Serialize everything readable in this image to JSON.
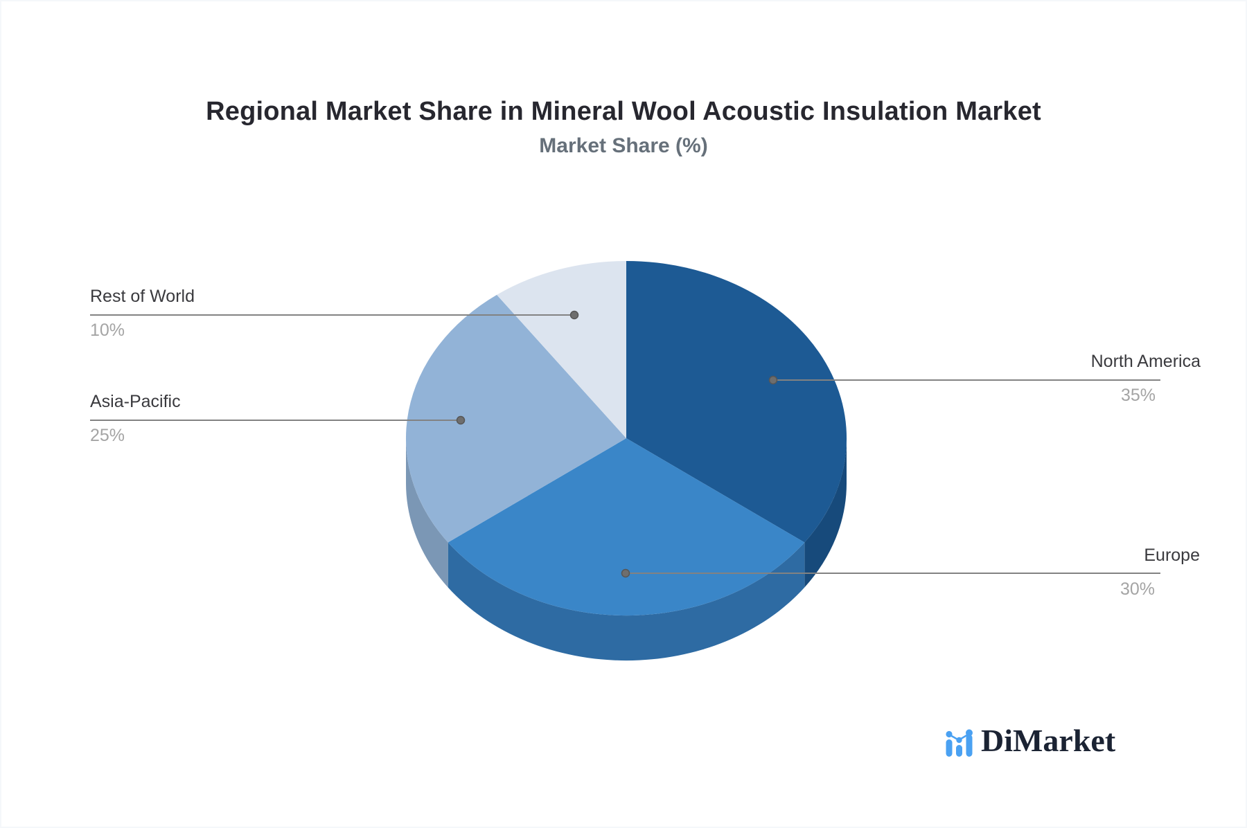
{
  "page": {
    "title": "Regional Market Share in Mineral Wool Acoustic Insulation Market",
    "subtitle": "Market Share (%)"
  },
  "chart_data": {
    "type": "pie",
    "style": "3d",
    "title": "Regional Market Share in Mineral Wool Acoustic Insulation Market",
    "subtitle": "Market Share (%)",
    "unit": "%",
    "start_angle_deg": 0,
    "direction": "clockwise",
    "categories": [
      "North America",
      "Europe",
      "Asia-Pacific",
      "Rest of World"
    ],
    "values": [
      35,
      30,
      25,
      10
    ],
    "slice_colors": [
      "#1d5a94",
      "#3a86c8",
      "#92b3d7",
      "#dce4ef"
    ],
    "slice_side_colors": [
      "#174a7b",
      "#2e6ba3",
      "#7b97b5",
      "#c9d4e4"
    ],
    "leader_line_color": "#828282",
    "leader_dot_color": "#6e6e6e",
    "legend_position": "none",
    "labels": [
      {
        "name": "North America",
        "value_label": "35%",
        "side": "right"
      },
      {
        "name": "Europe",
        "value_label": "30%",
        "side": "right"
      },
      {
        "name": "Asia-Pacific",
        "value_label": "25%",
        "side": "left"
      },
      {
        "name": "Rest of World",
        "value_label": "10%",
        "side": "left"
      }
    ]
  },
  "branding": {
    "logo_text": "DiMarket",
    "logo_icon": "mini-bar-chart-icon",
    "logo_icon_color": "#4aa1f2",
    "logo_text_color": "#1b2333"
  }
}
